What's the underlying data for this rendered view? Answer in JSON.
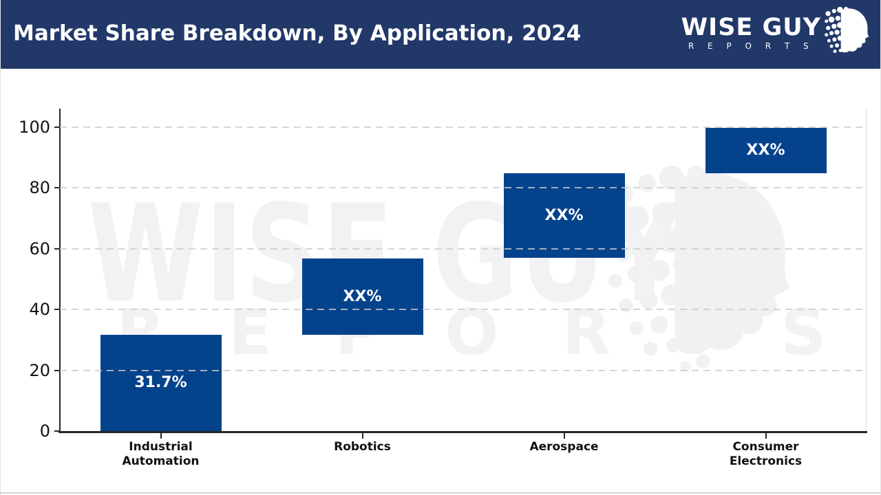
{
  "header": {
    "title": "Market Share Breakdown, By Application, 2024",
    "bg_color": "#213868",
    "logo": {
      "name_line": "WISE GUY",
      "sub_line": "R E P O R T S",
      "face_icon": "dotted-profile-face"
    }
  },
  "watermark": {
    "name_line": "WISE GUY",
    "sub_line": "R E P O R T S",
    "face_icon": "dotted-profile-face",
    "color": "#f2f2f4"
  },
  "chart_data": {
    "type": "bar",
    "subtype": "waterfall",
    "title": "Market Share Breakdown, By Application, 2024",
    "categories": [
      "Industrial Automation",
      "Robotics",
      "Aerospace",
      "Consumer Electronics"
    ],
    "series": [
      {
        "name": "Market Share (%)",
        "segments": [
          {
            "category": "Industrial Automation",
            "label": "31.7%",
            "start": 0,
            "end": 31.7
          },
          {
            "category": "Robotics",
            "label": "XX%",
            "start": 31.7,
            "end": 56.9
          },
          {
            "category": "Aerospace",
            "label": "XX%",
            "start": 56.9,
            "end": 84.9
          },
          {
            "category": "Consumer Electronics",
            "label": "XX%",
            "start": 84.9,
            "end": 99.8
          }
        ]
      }
    ],
    "xlabel": "",
    "ylabel": "",
    "yticks": [
      0,
      20,
      40,
      60,
      80,
      100
    ],
    "ylim": [
      0,
      106
    ],
    "grid": "horizontal-dashed",
    "legend": "none",
    "bar_color": "#04428C",
    "bar_label_color": "#ffffff",
    "axis_color": "#262626"
  }
}
